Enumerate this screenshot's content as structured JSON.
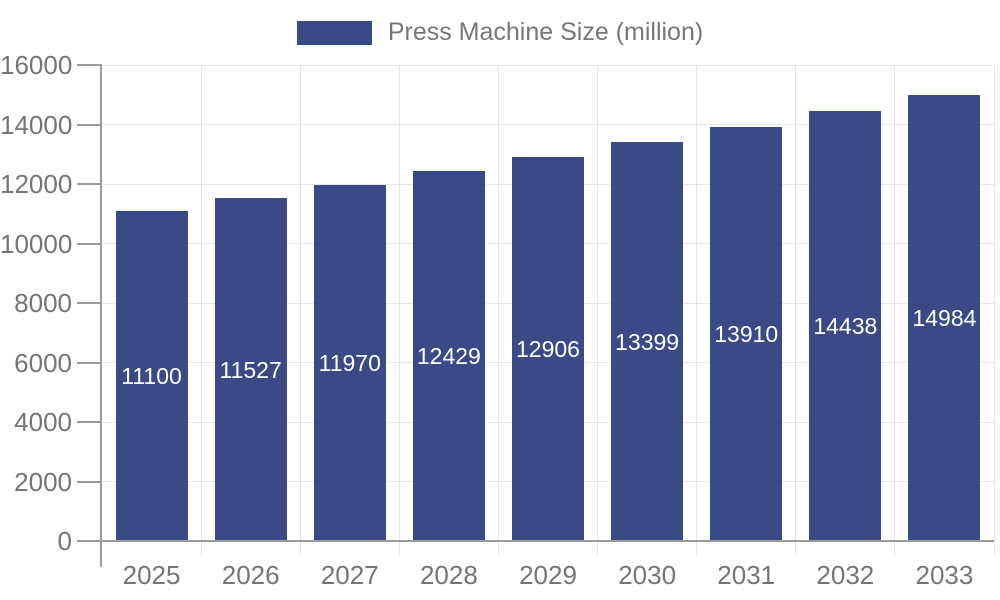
{
  "legend": {
    "label": "Press Machine Size (million)",
    "swatch_color": "#3a4a87",
    "text_color": "#777777"
  },
  "chart_data": {
    "type": "bar",
    "title": "Press Machine Size (million)",
    "categories": [
      "2025",
      "2026",
      "2027",
      "2028",
      "2029",
      "2030",
      "2031",
      "2032",
      "2033"
    ],
    "series": [
      {
        "name": "Press Machine Size (million)",
        "values": [
          11100,
          11527,
          11970,
          12429,
          12906,
          13399,
          13910,
          14438,
          14984
        ]
      }
    ],
    "bar_value_labels": [
      "11100",
      "11527",
      "11970",
      "12429",
      "12906",
      "13399",
      "13910",
      "14438",
      "14984"
    ],
    "xlabel": "",
    "ylabel": "",
    "ylim": [
      0,
      16000
    ],
    "yticks": [
      0,
      2000,
      4000,
      6000,
      8000,
      10000,
      12000,
      14000,
      16000
    ],
    "grid": true,
    "legend_position": "top-center",
    "colors": {
      "bar": "#3a4a87",
      "bar_label": "#ffffff",
      "axis": "#9a9a9a",
      "grid_horizontal": "#e8e8e8",
      "grid_vertical": "#e4e4ec",
      "tick_label": "#757575"
    }
  }
}
